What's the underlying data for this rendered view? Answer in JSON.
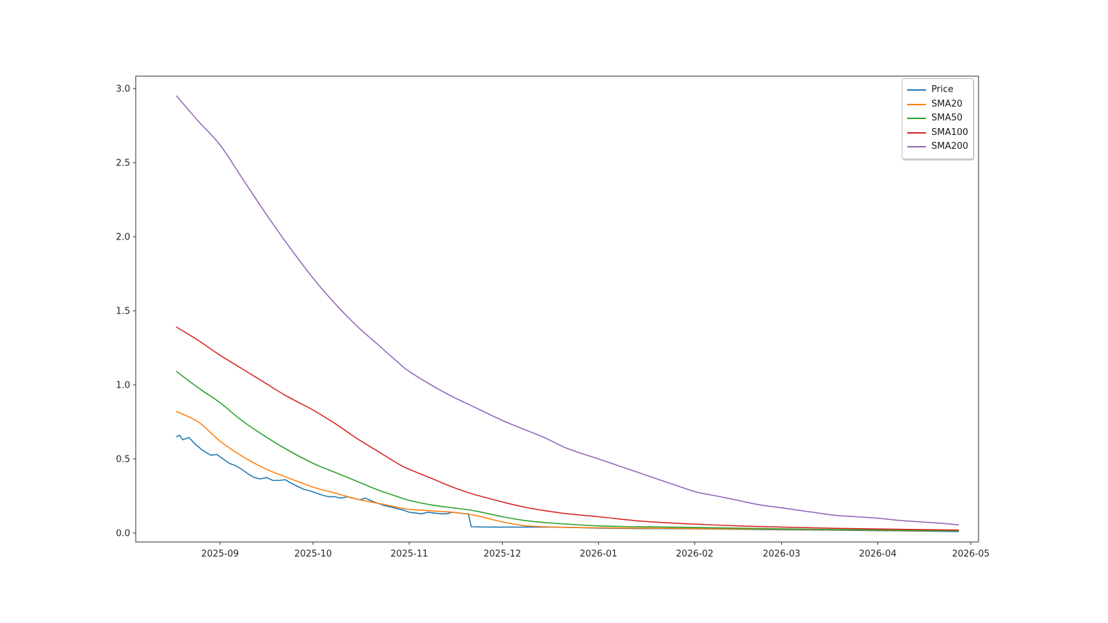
{
  "chart_data": {
    "type": "line",
    "title": "",
    "xlabel": "",
    "ylabel": "",
    "grid": false,
    "x_axis": {
      "origin": "2025-08-18",
      "end": "2026-04-27",
      "ticks": [
        {
          "label": "2025-09",
          "date": "2025-09-01"
        },
        {
          "label": "2025-10",
          "date": "2025-10-01"
        },
        {
          "label": "2025-11",
          "date": "2025-11-01"
        },
        {
          "label": "2025-12",
          "date": "2025-12-01"
        },
        {
          "label": "2026-01",
          "date": "2026-01-01"
        },
        {
          "label": "2026-02",
          "date": "2026-02-01"
        },
        {
          "label": "2026-03",
          "date": "2026-03-01"
        },
        {
          "label": "2026-04",
          "date": "2026-04-01"
        },
        {
          "label": "2026-05",
          "date": "2026-05-01"
        }
      ]
    },
    "y_axis": {
      "ticks": [
        {
          "label": "0.0",
          "value": 0.0
        },
        {
          "label": "0.5",
          "value": 0.5
        },
        {
          "label": "1.0",
          "value": 1.0
        },
        {
          "label": "1.5",
          "value": 1.5
        },
        {
          "label": "2.0",
          "value": 2.0
        },
        {
          "label": "2.5",
          "value": 2.5
        },
        {
          "label": "3.0",
          "value": 3.0
        }
      ],
      "ylim": [
        -0.06,
        3.08
      ]
    },
    "legend": {
      "position": "upper right",
      "entries": [
        "Price",
        "SMA20",
        "SMA50",
        "SMA100",
        "SMA200"
      ]
    },
    "series": [
      {
        "name": "Price",
        "color": "#1f77b4",
        "style": "jagged",
        "points": [
          [
            "2025-08-18",
            0.65
          ],
          [
            "2025-08-19",
            0.66
          ],
          [
            "2025-08-20",
            0.63
          ],
          [
            "2025-08-22",
            0.645
          ],
          [
            "2025-08-24",
            0.6
          ],
          [
            "2025-08-26",
            0.565
          ],
          [
            "2025-08-27",
            0.55
          ],
          [
            "2025-08-29",
            0.525
          ],
          [
            "2025-08-31",
            0.53
          ],
          [
            "2025-09-02",
            0.5
          ],
          [
            "2025-09-04",
            0.47
          ],
          [
            "2025-09-06",
            0.455
          ],
          [
            "2025-09-08",
            0.43
          ],
          [
            "2025-09-10",
            0.4
          ],
          [
            "2025-09-12",
            0.375
          ],
          [
            "2025-09-14",
            0.365
          ],
          [
            "2025-09-16",
            0.375
          ],
          [
            "2025-09-18",
            0.355
          ],
          [
            "2025-09-20",
            0.355
          ],
          [
            "2025-09-22",
            0.36
          ],
          [
            "2025-09-24",
            0.335
          ],
          [
            "2025-09-26",
            0.315
          ],
          [
            "2025-09-28",
            0.295
          ],
          [
            "2025-09-30",
            0.285
          ],
          [
            "2025-10-02",
            0.27
          ],
          [
            "2025-10-04",
            0.255
          ],
          [
            "2025-10-06",
            0.245
          ],
          [
            "2025-10-08",
            0.245
          ],
          [
            "2025-10-10",
            0.235
          ],
          [
            "2025-10-12",
            0.245
          ],
          [
            "2025-10-14",
            0.235
          ],
          [
            "2025-10-16",
            0.225
          ],
          [
            "2025-10-18",
            0.235
          ],
          [
            "2025-10-20",
            0.215
          ],
          [
            "2025-10-22",
            0.2
          ],
          [
            "2025-10-24",
            0.185
          ],
          [
            "2025-10-26",
            0.175
          ],
          [
            "2025-10-28",
            0.165
          ],
          [
            "2025-10-30",
            0.155
          ],
          [
            "2025-11-01",
            0.14
          ],
          [
            "2025-11-03",
            0.135
          ],
          [
            "2025-11-05",
            0.13
          ],
          [
            "2025-11-07",
            0.14
          ],
          [
            "2025-11-09",
            0.135
          ],
          [
            "2025-11-11",
            0.13
          ],
          [
            "2025-11-13",
            0.13
          ],
          [
            "2025-11-15",
            0.14
          ],
          [
            "2025-11-17",
            0.135
          ],
          [
            "2025-11-19",
            0.13
          ],
          [
            "2025-11-20",
            0.13
          ],
          [
            "2025-11-21",
            0.042
          ],
          [
            "2025-11-26",
            0.04
          ],
          [
            "2025-12-03",
            0.04
          ],
          [
            "2025-12-10",
            0.04
          ],
          [
            "2025-12-17",
            0.04
          ],
          [
            "2025-12-24",
            0.037
          ],
          [
            "2026-01-01",
            0.033
          ],
          [
            "2026-01-15",
            0.03
          ],
          [
            "2026-02-01",
            0.028
          ],
          [
            "2026-02-15",
            0.025
          ],
          [
            "2026-03-01",
            0.022
          ],
          [
            "2026-03-15",
            0.02
          ],
          [
            "2026-04-01",
            0.016
          ],
          [
            "2026-04-15",
            0.013
          ],
          [
            "2026-04-27",
            0.01
          ]
        ]
      },
      {
        "name": "SMA20",
        "color": "#ff7f0e",
        "style": "smooth",
        "points": [
          [
            "2025-08-18",
            0.82
          ],
          [
            "2025-08-25",
            0.75
          ],
          [
            "2025-09-01",
            0.62
          ],
          [
            "2025-09-08",
            0.52
          ],
          [
            "2025-09-15",
            0.44
          ],
          [
            "2025-09-22",
            0.38
          ],
          [
            "2025-10-01",
            0.31
          ],
          [
            "2025-10-08",
            0.27
          ],
          [
            "2025-10-15",
            0.23
          ],
          [
            "2025-10-22",
            0.2
          ],
          [
            "2025-10-29",
            0.17
          ],
          [
            "2025-11-01",
            0.16
          ],
          [
            "2025-11-08",
            0.15
          ],
          [
            "2025-11-15",
            0.14
          ],
          [
            "2025-11-22",
            0.12
          ],
          [
            "2025-11-27",
            0.095
          ],
          [
            "2025-12-01",
            0.075
          ],
          [
            "2025-12-08",
            0.05
          ],
          [
            "2025-12-15",
            0.042
          ],
          [
            "2025-12-22",
            0.038
          ],
          [
            "2026-01-01",
            0.035
          ],
          [
            "2026-01-15",
            0.033
          ],
          [
            "2026-02-01",
            0.03
          ],
          [
            "2026-03-01",
            0.025
          ],
          [
            "2026-04-01",
            0.018
          ],
          [
            "2026-04-27",
            0.014
          ]
        ]
      },
      {
        "name": "SMA50",
        "color": "#2ca02c",
        "style": "smooth",
        "points": [
          [
            "2025-08-18",
            1.09
          ],
          [
            "2025-08-25",
            0.98
          ],
          [
            "2025-09-01",
            0.88
          ],
          [
            "2025-09-08",
            0.76
          ],
          [
            "2025-09-15",
            0.66
          ],
          [
            "2025-09-22",
            0.57
          ],
          [
            "2025-10-01",
            0.47
          ],
          [
            "2025-10-08",
            0.41
          ],
          [
            "2025-10-15",
            0.35
          ],
          [
            "2025-10-22",
            0.29
          ],
          [
            "2025-10-29",
            0.24
          ],
          [
            "2025-11-01",
            0.22
          ],
          [
            "2025-11-08",
            0.19
          ],
          [
            "2025-11-15",
            0.17
          ],
          [
            "2025-11-22",
            0.15
          ],
          [
            "2025-12-01",
            0.11
          ],
          [
            "2025-12-08",
            0.085
          ],
          [
            "2025-12-15",
            0.07
          ],
          [
            "2025-12-22",
            0.06
          ],
          [
            "2026-01-01",
            0.048
          ],
          [
            "2026-01-15",
            0.042
          ],
          [
            "2026-02-01",
            0.038
          ],
          [
            "2026-03-01",
            0.028
          ],
          [
            "2026-04-01",
            0.02
          ],
          [
            "2026-04-27",
            0.015
          ]
        ]
      },
      {
        "name": "SMA100",
        "color": "#d62728",
        "style": "smooth",
        "points": [
          [
            "2025-08-18",
            1.39
          ],
          [
            "2025-08-25",
            1.3
          ],
          [
            "2025-09-01",
            1.2
          ],
          [
            "2025-09-08",
            1.11
          ],
          [
            "2025-09-15",
            1.02
          ],
          [
            "2025-09-22",
            0.93
          ],
          [
            "2025-10-01",
            0.83
          ],
          [
            "2025-10-08",
            0.74
          ],
          [
            "2025-10-15",
            0.64
          ],
          [
            "2025-10-22",
            0.55
          ],
          [
            "2025-10-29",
            0.46
          ],
          [
            "2025-11-01",
            0.43
          ],
          [
            "2025-11-08",
            0.37
          ],
          [
            "2025-11-15",
            0.31
          ],
          [
            "2025-11-22",
            0.26
          ],
          [
            "2025-12-01",
            0.21
          ],
          [
            "2025-12-08",
            0.175
          ],
          [
            "2025-12-15",
            0.15
          ],
          [
            "2025-12-22",
            0.13
          ],
          [
            "2026-01-01",
            0.11
          ],
          [
            "2026-01-15",
            0.08
          ],
          [
            "2026-02-01",
            0.06
          ],
          [
            "2026-02-15",
            0.048
          ],
          [
            "2026-03-01",
            0.04
          ],
          [
            "2026-03-18",
            0.032
          ],
          [
            "2026-04-01",
            0.027
          ],
          [
            "2026-04-27",
            0.02
          ]
        ]
      },
      {
        "name": "SMA200",
        "color": "#9467bd",
        "style": "smooth",
        "points": [
          [
            "2025-08-18",
            2.95
          ],
          [
            "2025-08-25",
            2.78
          ],
          [
            "2025-09-01",
            2.62
          ],
          [
            "2025-09-08",
            2.4
          ],
          [
            "2025-09-15",
            2.18
          ],
          [
            "2025-09-22",
            1.97
          ],
          [
            "2025-10-01",
            1.72
          ],
          [
            "2025-10-08",
            1.55
          ],
          [
            "2025-10-15",
            1.4
          ],
          [
            "2025-10-22",
            1.27
          ],
          [
            "2025-10-29",
            1.14
          ],
          [
            "2025-11-01",
            1.09
          ],
          [
            "2025-11-08",
            1.0
          ],
          [
            "2025-11-15",
            0.92
          ],
          [
            "2025-11-22",
            0.85
          ],
          [
            "2025-12-01",
            0.76
          ],
          [
            "2025-12-08",
            0.7
          ],
          [
            "2025-12-15",
            0.64
          ],
          [
            "2025-12-22",
            0.57
          ],
          [
            "2026-01-01",
            0.5
          ],
          [
            "2026-01-08",
            0.45
          ],
          [
            "2026-01-15",
            0.4
          ],
          [
            "2026-01-22",
            0.35
          ],
          [
            "2026-02-01",
            0.28
          ],
          [
            "2026-02-08",
            0.25
          ],
          [
            "2026-02-15",
            0.22
          ],
          [
            "2026-02-22",
            0.19
          ],
          [
            "2026-03-01",
            0.17
          ],
          [
            "2026-03-11",
            0.14
          ],
          [
            "2026-03-18",
            0.12
          ],
          [
            "2026-03-25",
            0.11
          ],
          [
            "2026-04-01",
            0.1
          ],
          [
            "2026-04-08",
            0.085
          ],
          [
            "2026-04-15",
            0.075
          ],
          [
            "2026-04-22",
            0.065
          ],
          [
            "2026-04-27",
            0.055
          ]
        ]
      }
    ]
  }
}
